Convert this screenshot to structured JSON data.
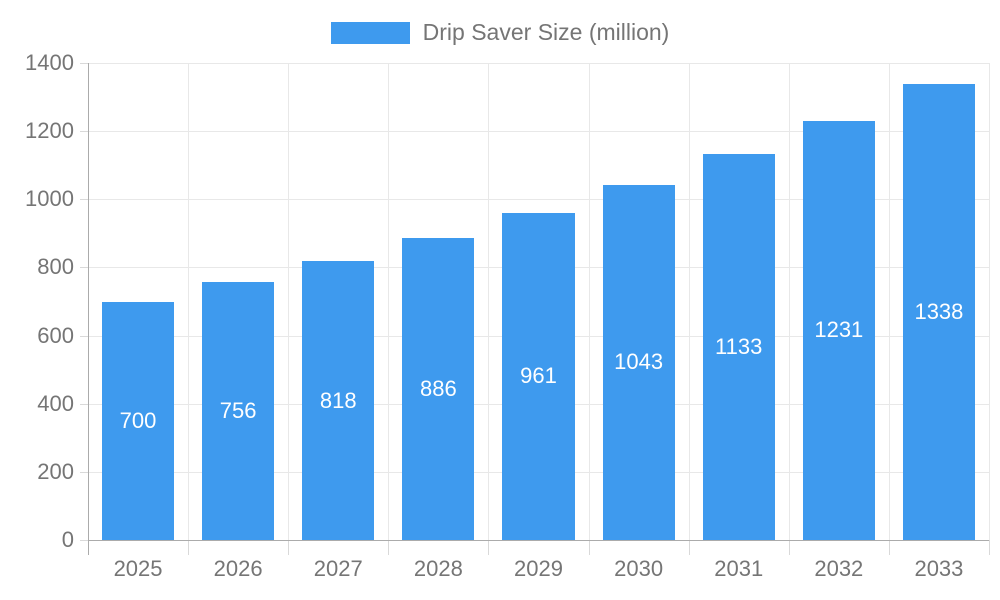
{
  "legend": {
    "label": "Drip Saver Size (million)"
  },
  "colors": {
    "bar": "#3e9aee",
    "grid": "#e8e8e8",
    "axis": "#ababab",
    "tick": "#d9d9d9",
    "axis_text": "#757575",
    "value_label": "#ffffff"
  },
  "chart_data": {
    "type": "bar",
    "title": "Drip Saver Size (million)",
    "series_name": "Drip Saver Size (million)",
    "categories": [
      "2025",
      "2026",
      "2027",
      "2028",
      "2029",
      "2030",
      "2031",
      "2032",
      "2033"
    ],
    "values": [
      700,
      756,
      818,
      886,
      961,
      1043,
      1133,
      1231,
      1338
    ],
    "value_labels_shown": true,
    "xlabel": "",
    "ylabel": "",
    "ylim": [
      0,
      1400
    ],
    "yticks": [
      0,
      200,
      400,
      600,
      800,
      1000,
      1200,
      1400
    ],
    "grid": true,
    "legend_position": "top-center"
  }
}
